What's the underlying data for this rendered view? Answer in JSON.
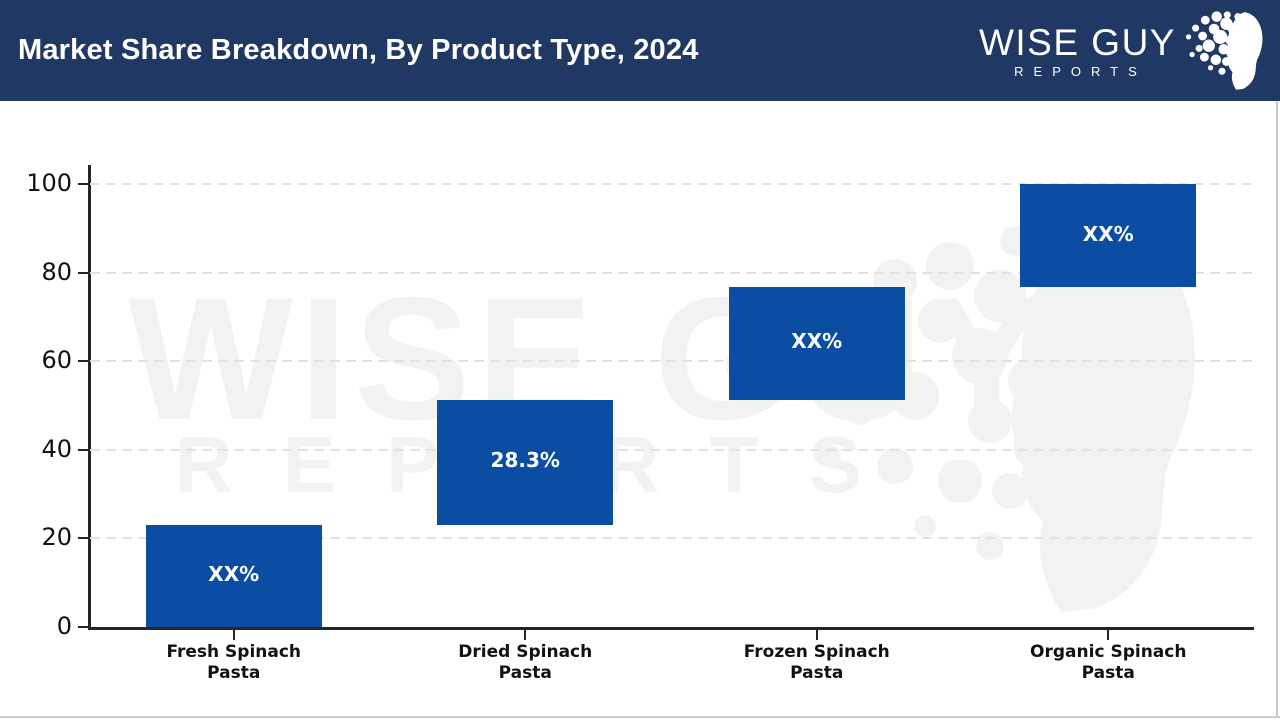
{
  "header": {
    "title": "Market Share Breakdown, By Product Type, 2024",
    "logo": {
      "wordmark": "WISE GUY",
      "subtext": "REPORTS",
      "icon": "dotted-face-profile"
    }
  },
  "watermark": {
    "line1": "WISE GUY",
    "line2": "REPORTS"
  },
  "chart_data": {
    "type": "bar",
    "subtype": "floating-waterfall-percentage",
    "title": "Market Share Breakdown, By Product Type, 2024",
    "categories": [
      "Fresh Spinach Pasta",
      "Dried Spinach Pasta",
      "Frozen Spinach Pasta",
      "Organic Spinach Pasta"
    ],
    "category_lines": [
      [
        "Fresh Spinach",
        "Pasta"
      ],
      [
        "Dried Spinach",
        "Pasta"
      ],
      [
        "Frozen Spinach",
        "Pasta"
      ],
      [
        "Organic Spinach",
        "Pasta"
      ]
    ],
    "series": [
      {
        "name": "Market Share",
        "segments": [
          {
            "category": "Fresh Spinach Pasta",
            "start": 0,
            "end": 23,
            "label": "XX%"
          },
          {
            "category": "Dried Spinach Pasta",
            "start": 23,
            "end": 51.3,
            "label": "28.3%"
          },
          {
            "category": "Frozen Spinach Pasta",
            "start": 51.3,
            "end": 76.7,
            "label": "XX%"
          },
          {
            "category": "Organic Spinach Pasta",
            "start": 76.7,
            "end": 100,
            "label": "XX%"
          }
        ]
      }
    ],
    "yticks": [
      0,
      20,
      40,
      60,
      80,
      100
    ],
    "ylim": [
      0,
      104
    ],
    "xlabel": "",
    "ylabel": "",
    "grid": "dashed-horizontal",
    "legend": "none",
    "bar_color": "#0b4da2",
    "bar_label_color": "#ffffff",
    "axis_color": "#262626",
    "gridline_color": "#e2e2e2"
  },
  "colors": {
    "header_bg": "#1f3864",
    "header_text": "#ffffff",
    "background": "#ffffff",
    "watermark": "#f2f2f2",
    "frame_line": "#c9c9c9"
  }
}
